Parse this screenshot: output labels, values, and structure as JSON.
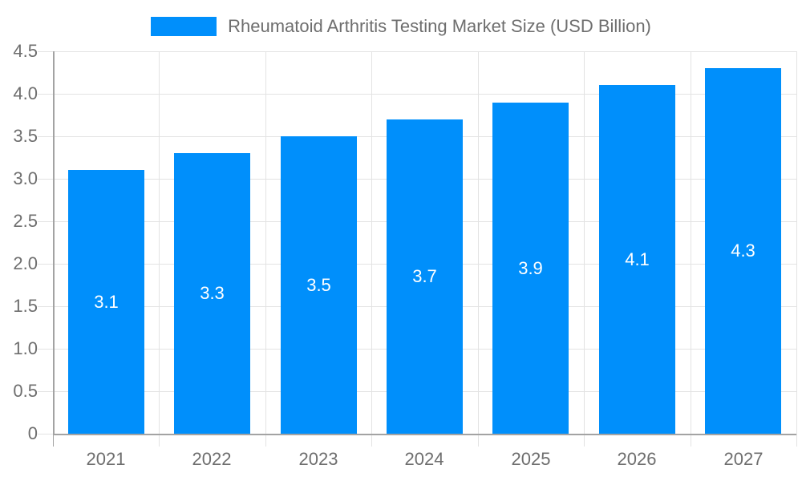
{
  "chart_data": {
    "type": "bar",
    "title": "Rheumatoid Arthritis Testing Market Size (USD Billion)",
    "legend": {
      "position": "top",
      "entries": [
        {
          "label": "Rheumatoid Arthritis Testing Market Size (USD Billion)",
          "marker": "rect",
          "color": "#008FFB"
        }
      ]
    },
    "categories": [
      "2021",
      "2022",
      "2023",
      "2024",
      "2025",
      "2026",
      "2027"
    ],
    "series": [
      {
        "name": "Rheumatoid Arthritis Testing Market Size (USD Billion)",
        "values": [
          3.1,
          3.3,
          3.5,
          3.7,
          3.9,
          4.1,
          4.3
        ]
      }
    ],
    "data_labels": [
      "3.1",
      "3.3",
      "3.5",
      "3.7",
      "3.9",
      "4.1",
      "4.3"
    ],
    "data_label_position": "center-inside",
    "xlabel": "",
    "ylabel": "",
    "ylim": [
      0,
      4.5
    ],
    "ytick_step": 0.5,
    "ytick_labels": [
      "0",
      "0.5",
      "1.0",
      "1.5",
      "2.0",
      "2.5",
      "3.0",
      "3.5",
      "4.0",
      "4.5"
    ],
    "grid": "both",
    "colors": {
      "bar": "#008FFB",
      "grid": "#e3e3e3",
      "axis": "#a3a3a3",
      "text": "#6e6e6e",
      "data_label": "#ffffff",
      "background": "#ffffff"
    }
  }
}
